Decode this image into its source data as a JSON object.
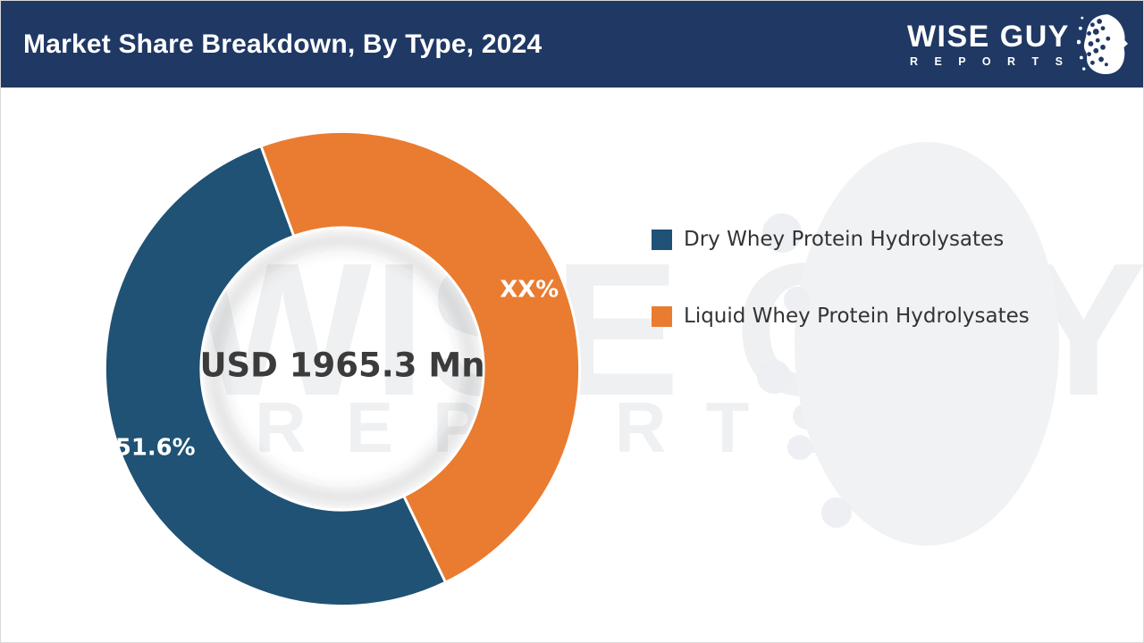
{
  "header": {
    "title": "Market Share Breakdown, By Type, 2024",
    "logo": {
      "name": "WISE GUY",
      "sub": "R E P O R T S"
    }
  },
  "chart_data": {
    "type": "pie",
    "donut": true,
    "title": "Market Share Breakdown, By Type, 2024",
    "center_label": "USD 1965.3 Mn",
    "categories": [
      "Dry Whey Protein Hydrolysates",
      "Liquid Whey Protein Hydrolysates"
    ],
    "values": [
      51.6,
      48.4
    ],
    "slice_labels": [
      "51.6%",
      "XX%"
    ],
    "colors": [
      "#1F5274",
      "#E97C30"
    ],
    "start_angle": 154.2,
    "legend_position": "right"
  },
  "watermark": {
    "brand": "WISE GUY",
    "reports": "REPORTS"
  },
  "colors": {
    "header_bg": "#1F3864",
    "slice_blue": "#1F5274",
    "slice_orange": "#E97C30",
    "center_text": "#3B3B3B",
    "legend_text": "#333333",
    "watermark": "#EEF0F2",
    "border": "#D8D8D8"
  }
}
